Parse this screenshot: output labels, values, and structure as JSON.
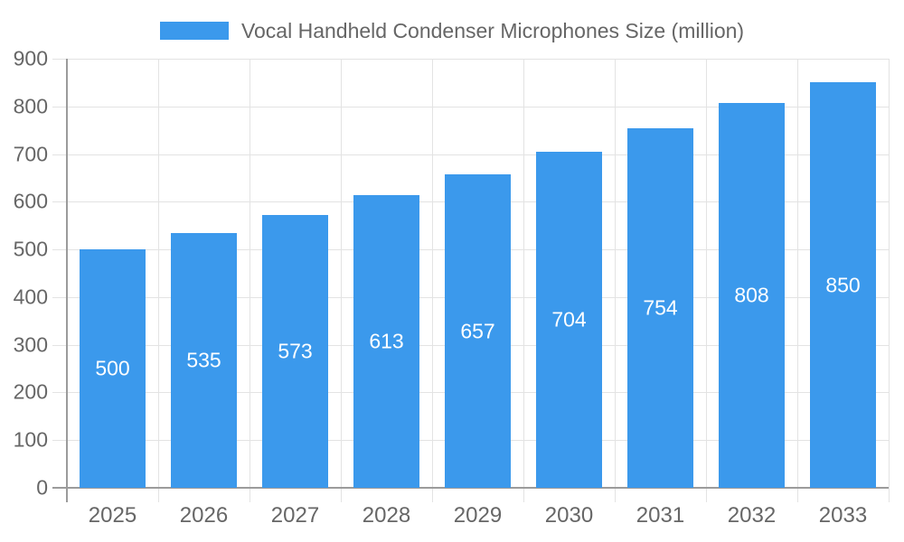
{
  "legend": {
    "label": "Vocal Handheld Condenser Microphones Size (million)",
    "swatch_color": "#3b99ec"
  },
  "chart_data": {
    "type": "bar",
    "title": "Vocal Handheld Condenser Microphones Size (million)",
    "series_name": "Vocal Handheld Condenser Microphones Size (million)",
    "categories": [
      "2025",
      "2026",
      "2027",
      "2028",
      "2029",
      "2030",
      "2031",
      "2032",
      "2033"
    ],
    "values": [
      500,
      535,
      573,
      613,
      657,
      704,
      754,
      808,
      850
    ],
    "value_labels": [
      "500",
      "535",
      "573",
      "613",
      "657",
      "704",
      "754",
      "808",
      "850"
    ],
    "xlabel": "",
    "ylabel": "",
    "ylim": [
      0,
      900
    ],
    "ytick_step": 100,
    "yticks": [
      0,
      100,
      200,
      300,
      400,
      500,
      600,
      700,
      800,
      900
    ],
    "grid": true,
    "legend_position": "top-center",
    "value_label_position": "inside-center",
    "value_label_color": "#ffffff"
  },
  "colors": {
    "bar": "#3b99ec",
    "grid": "#e3e3e3",
    "axis": "#9b9b9b",
    "text": "#666666",
    "value_text": "#ffffff",
    "background": "#ffffff"
  }
}
